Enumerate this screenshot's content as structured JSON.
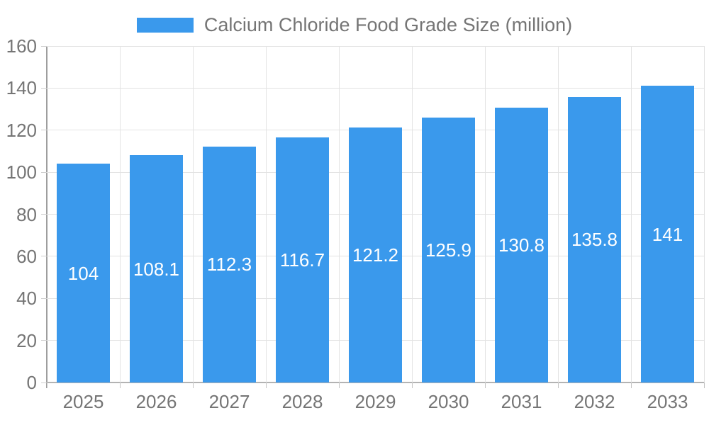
{
  "legend": {
    "label": "Calcium Chloride Food Grade Size (million)"
  },
  "chart_data": {
    "type": "bar",
    "title": "Calcium Chloride Food Grade Size (million)",
    "categories": [
      "2025",
      "2026",
      "2027",
      "2028",
      "2029",
      "2030",
      "2031",
      "2032",
      "2033"
    ],
    "values": [
      104,
      108.1,
      112.3,
      116.7,
      121.2,
      125.9,
      130.8,
      135.8,
      141
    ],
    "bar_labels": [
      "104",
      "108.1",
      "112.3",
      "116.7",
      "121.2",
      "125.9",
      "130.8",
      "135.8",
      "141"
    ],
    "xlabel": "",
    "ylabel": "",
    "ylim": [
      0,
      160
    ],
    "ytick_step": 20,
    "ytick_labels": [
      "0",
      "20",
      "40",
      "60",
      "80",
      "100",
      "120",
      "140",
      "160"
    ],
    "grid": true,
    "legend_position": "top",
    "bar_label_position": "inside-middle",
    "colors": {
      "bar": "#3a99ec",
      "axis_text": "#757575",
      "bar_label_text": "#ffffff",
      "gridline": "#e3e3e3",
      "axis_line": "#9e9e9e",
      "background": "#ffffff"
    }
  }
}
